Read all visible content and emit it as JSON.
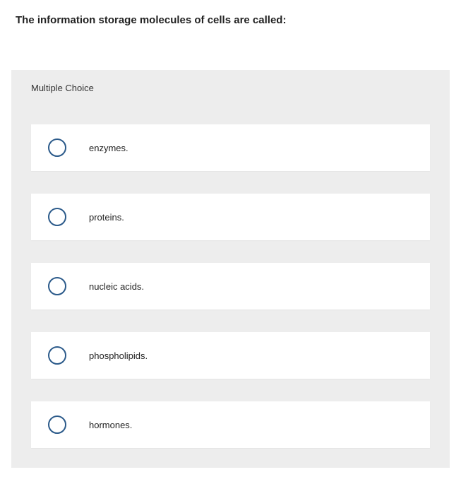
{
  "question": {
    "prompt": "The information storage molecules of cells are called:"
  },
  "panel": {
    "label": "Multiple Choice"
  },
  "options": [
    {
      "label": "enzymes."
    },
    {
      "label": "proteins."
    },
    {
      "label": "nucleic acids."
    },
    {
      "label": "phospholipids."
    },
    {
      "label": "hormones."
    }
  ],
  "styling": {
    "body_background": "#ffffff",
    "panel_background": "#ededed",
    "option_background": "#ffffff",
    "radio_border_color": "#2b5a8a",
    "question_fontsize": 15,
    "panel_label_fontsize": 13,
    "option_label_fontsize": 13,
    "text_color": "#222222",
    "radio_diameter": 26,
    "radio_border_width": 2,
    "option_gap": 32
  }
}
